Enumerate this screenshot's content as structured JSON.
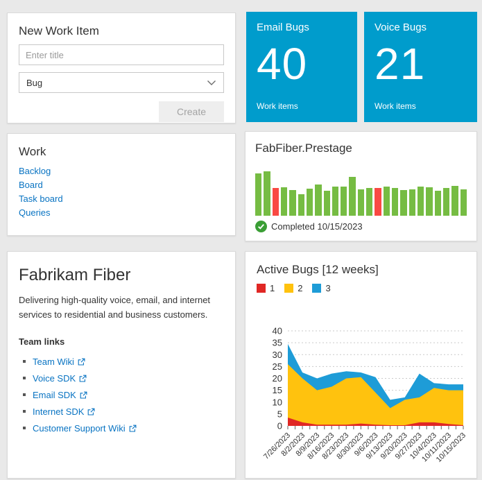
{
  "new_work_item": {
    "title": "New Work Item",
    "title_placeholder": "Enter title",
    "type_value": "Bug",
    "create_label": "Create"
  },
  "tiles": [
    {
      "title": "Email Bugs",
      "count": "40",
      "subtitle": "Work items",
      "color": "#009ccc"
    },
    {
      "title": "Voice Bugs",
      "count": "21",
      "subtitle": "Work items",
      "color": "#009ccc"
    }
  ],
  "work": {
    "title": "Work",
    "links": [
      "Backlog",
      "Board",
      "Task board",
      "Queries"
    ]
  },
  "build": {
    "title": "FabFiber.Prestage",
    "status_label": "Completed 10/15/2023",
    "success_color": "#76bc43",
    "failed_color": "#f94943",
    "bar_heights_pct": [
      95,
      100,
      62,
      64,
      58,
      48,
      61,
      71,
      57,
      65,
      66,
      88,
      60,
      62,
      62,
      66,
      62,
      58,
      60,
      65,
      64,
      57,
      62,
      67,
      59
    ],
    "failed_indices": [
      2,
      14
    ]
  },
  "fabrikam": {
    "title": "Fabrikam Fiber",
    "description": "Delivering high-quality voice, email, and internet services to residential and business customers.",
    "links_header": "Team links",
    "links": [
      "Team Wiki",
      "Voice SDK",
      "Email SDK",
      "Internet SDK",
      "Customer Support Wiki"
    ]
  },
  "active_bugs": {
    "title": "Active Bugs [12 weeks]"
  },
  "chart_data": {
    "type": "area",
    "stacked": true,
    "title": "Active Bugs [12 weeks]",
    "xlabel": "",
    "ylabel": "",
    "ylim": [
      0,
      40
    ],
    "ytick_step": 5,
    "grid": "dashed-horizontal",
    "legend_position": "top-left",
    "x": [
      "7/26/2023",
      "8/2/2023",
      "8/9/2023",
      "8/16/2023",
      "8/23/2023",
      "8/30/2023",
      "9/6/2023",
      "9/13/2023",
      "9/20/2023",
      "9/27/2023",
      "10/4/2023",
      "10/11/2023",
      "10/15/2023"
    ],
    "series": [
      {
        "name": "1",
        "color": "#e02724",
        "values": [
          3.5,
          1.5,
          0.5,
          0.5,
          0.5,
          1.0,
          0.5,
          0.3,
          0.3,
          1.5,
          1.5,
          0.8,
          0.3
        ]
      },
      {
        "name": "2",
        "color": "#ffc20e",
        "values": [
          22.5,
          18.5,
          14.5,
          16.0,
          19.5,
          19.5,
          13.5,
          7.2,
          10.7,
          10.5,
          14.5,
          14.2,
          14.7
        ]
      },
      {
        "name": "3",
        "color": "#1e9cd7",
        "values": [
          8.5,
          2.5,
          5.0,
          5.5,
          3.0,
          2.0,
          6.5,
          3.5,
          1.0,
          10.0,
          2.0,
          2.5,
          2.5
        ]
      }
    ],
    "totals": [
      34.5,
      22.5,
      20,
      22,
      23,
      22.5,
      20.5,
      11,
      12,
      22,
      18,
      17.5,
      17.5
    ]
  },
  "colors": {
    "tile_blue": "#009ccc",
    "link_blue": "#0873c2",
    "check_green": "#3a9e35",
    "page_background": "#e9e9e9"
  }
}
